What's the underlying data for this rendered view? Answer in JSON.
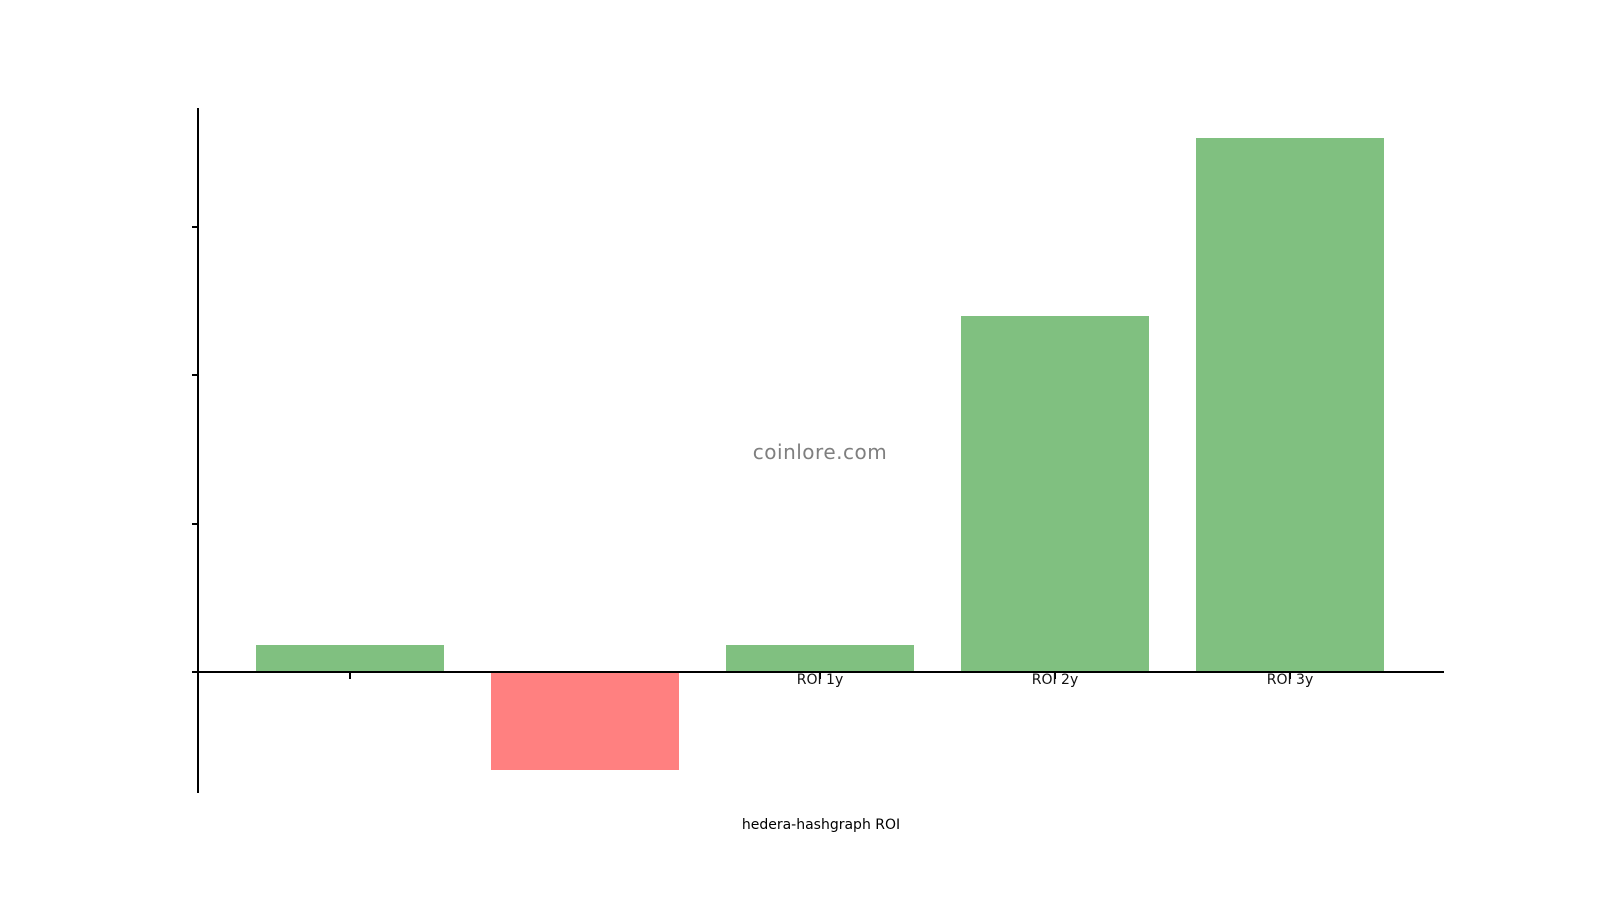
{
  "chart_data": {
    "type": "bar",
    "categories": [
      "",
      "",
      "ROI 1y",
      "ROI 2y",
      "ROI 3y"
    ],
    "values": [
      9,
      -33,
      9,
      120,
      180
    ],
    "title": "",
    "xlabel": "hedera-hashgraph ROI",
    "ylabel": "",
    "yticks": [
      0,
      50,
      100,
      150
    ],
    "ylim": [
      -41,
      190
    ],
    "grid": false,
    "legend": "none",
    "watermark": "coinlore.com",
    "positive_color": "#80c080",
    "negative_color": "#ff8080",
    "axis_color": "#000000",
    "watermark_color": "#7f7f7f"
  }
}
